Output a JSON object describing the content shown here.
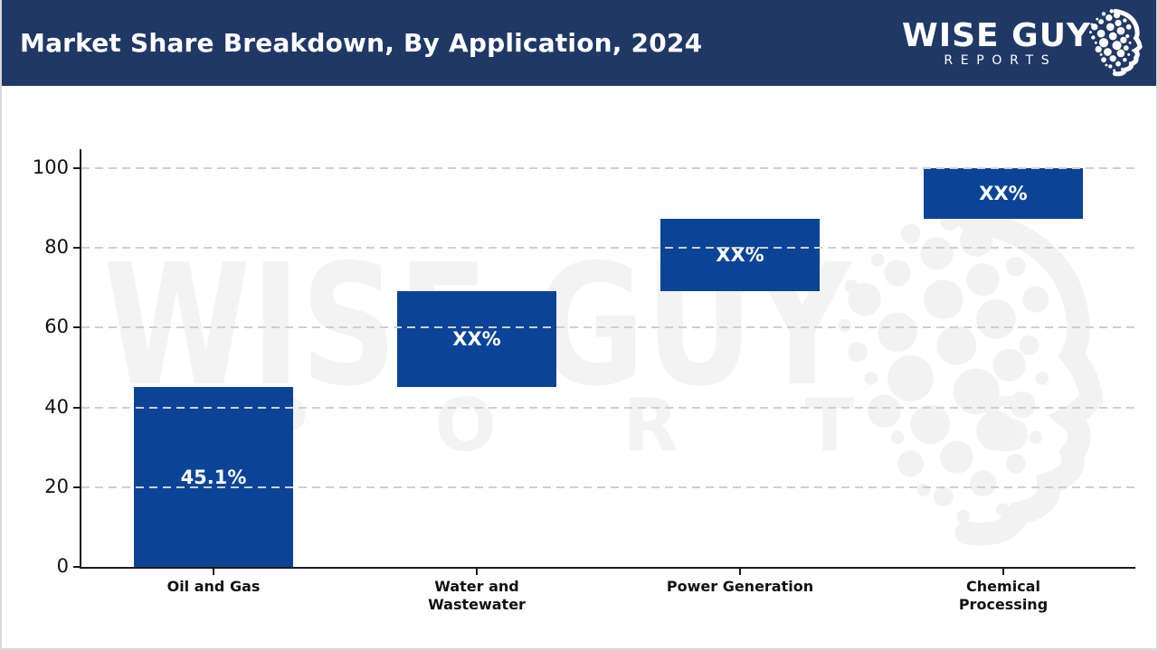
{
  "header": {
    "title": "Market Share Breakdown, By Application, 2024",
    "logo": {
      "line1": "WISE GUY",
      "line2": "REPORTS"
    }
  },
  "watermark": {
    "line1": "WISE GUY",
    "line2": "P O R T S"
  },
  "colors": {
    "header_bg": "#1f3865",
    "bar": "#0b4496",
    "bar_label": "#ffffff",
    "grid": "#cfcfcf",
    "axis": "#1a1a1a",
    "watermark": "#f3f3f3",
    "frame_border": "#d9d9d9"
  },
  "chart_data": {
    "type": "bar",
    "subtype": "waterfall",
    "title": "Market Share Breakdown, By Application, 2024",
    "categories": [
      "Oil and Gas",
      "Water and\nWastewater",
      "Power Generation",
      "Chemical\nProcessing"
    ],
    "segments": [
      {
        "from": 0,
        "to": 45.1,
        "label": "45.1%"
      },
      {
        "from": 45.1,
        "to": 69.2,
        "label": "XX%"
      },
      {
        "from": 69.2,
        "to": 87.3,
        "label": "XX%"
      },
      {
        "from": 87.3,
        "to": 100,
        "label": "XX%"
      }
    ],
    "xlabel": "",
    "ylabel": "",
    "ylim": [
      0,
      100
    ],
    "yticks": [
      0,
      20,
      40,
      60,
      80,
      100
    ],
    "grid": "horizontal dashed, drawn over bars",
    "legend": "none",
    "bar_color": "#0b4496"
  }
}
